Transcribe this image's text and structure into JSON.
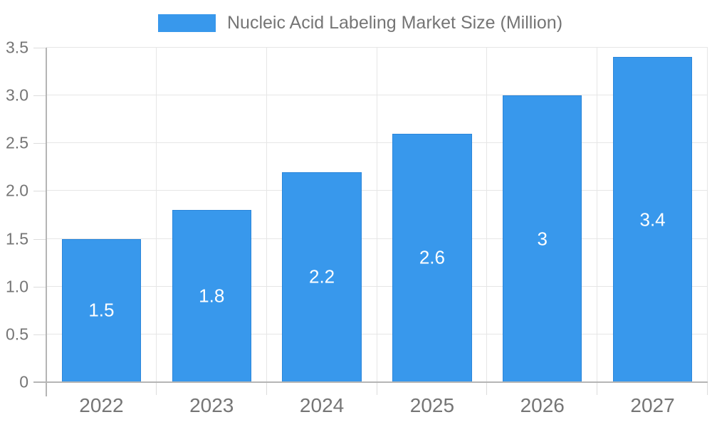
{
  "chart_data": {
    "type": "bar",
    "title": "Nucleic Acid Labeling Market Size (Million)",
    "categories": [
      "2022",
      "2023",
      "2024",
      "2025",
      "2026",
      "2027"
    ],
    "values": [
      1.5,
      1.8,
      2.2,
      2.6,
      3,
      3.4
    ],
    "xlabel": "",
    "ylabel": "",
    "ylim": [
      0,
      3.5
    ],
    "ytick_step": 0.5,
    "ytick_labels": [
      "0",
      "0.5",
      "1.0",
      "1.5",
      "2.0",
      "2.5",
      "3.0",
      "3.5"
    ],
    "grid": true,
    "legend_position": "top",
    "bar_label_position": "inside-center",
    "colors": {
      "bar": "#3898ec",
      "bar_border": "#2b86da",
      "axis_line": "#b5b5b5",
      "gridline": "#e6e6e6",
      "text": "#757575",
      "bar_label": "#ffffff"
    }
  }
}
